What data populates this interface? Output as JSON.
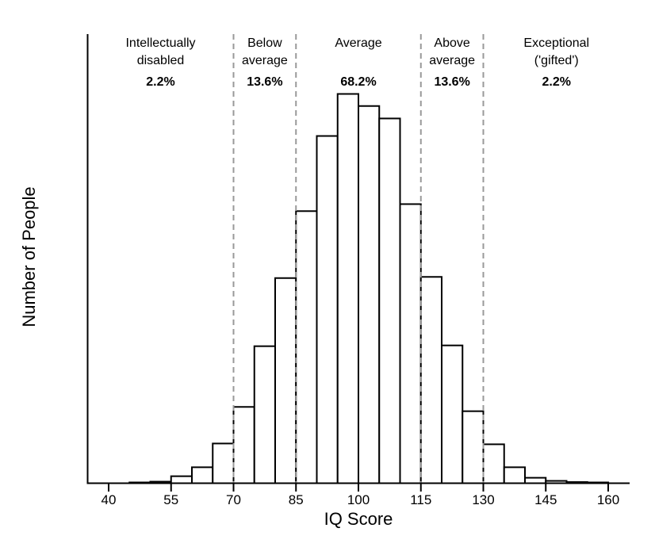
{
  "chart_data": {
    "type": "bar",
    "subtype": "histogram",
    "title": "",
    "xlabel": "IQ Score",
    "ylabel": "Number of People",
    "x_ticks": [
      40,
      55,
      70,
      85,
      100,
      115,
      130,
      145,
      160
    ],
    "xlim": [
      35,
      165
    ],
    "bin_width": 5,
    "y_axis_note": "y axis has no tick labels; bin heights are relative frequency with tallest bin = 1.0",
    "bins": [
      {
        "x0": 45,
        "x1": 50,
        "h": 0.002
      },
      {
        "x0": 50,
        "x1": 55,
        "h": 0.004
      },
      {
        "x0": 55,
        "x1": 60,
        "h": 0.018
      },
      {
        "x0": 60,
        "x1": 65,
        "h": 0.041
      },
      {
        "x0": 65,
        "x1": 70,
        "h": 0.102
      },
      {
        "x0": 70,
        "x1": 75,
        "h": 0.196
      },
      {
        "x0": 75,
        "x1": 80,
        "h": 0.352
      },
      {
        "x0": 80,
        "x1": 85,
        "h": 0.527
      },
      {
        "x0": 85,
        "x1": 90,
        "h": 0.699
      },
      {
        "x0": 90,
        "x1": 95,
        "h": 0.892
      },
      {
        "x0": 95,
        "x1": 100,
        "h": 1.0
      },
      {
        "x0": 100,
        "x1": 105,
        "h": 0.969
      },
      {
        "x0": 105,
        "x1": 110,
        "h": 0.937
      },
      {
        "x0": 110,
        "x1": 115,
        "h": 0.717
      },
      {
        "x0": 115,
        "x1": 120,
        "h": 0.53
      },
      {
        "x0": 120,
        "x1": 125,
        "h": 0.354
      },
      {
        "x0": 125,
        "x1": 130,
        "h": 0.185
      },
      {
        "x0": 130,
        "x1": 135,
        "h": 0.1
      },
      {
        "x0": 135,
        "x1": 140,
        "h": 0.041
      },
      {
        "x0": 140,
        "x1": 145,
        "h": 0.014
      },
      {
        "x0": 145,
        "x1": 150,
        "h": 0.006
      },
      {
        "x0": 150,
        "x1": 155,
        "h": 0.003
      },
      {
        "x0": 155,
        "x1": 160,
        "h": 0.002
      }
    ],
    "vlines": {
      "x": [
        70,
        85,
        115,
        130
      ],
      "style": "dashed",
      "color": "#999999"
    },
    "regions": [
      {
        "label": "Intellectually disabled",
        "label_lines": [
          "Intellectually",
          "disabled"
        ],
        "percent": "2.2%",
        "x_from": null,
        "x_to": 70
      },
      {
        "label": "Below average",
        "label_lines": [
          "Below",
          "average"
        ],
        "percent": "13.6%",
        "x_from": 70,
        "x_to": 85
      },
      {
        "label": "Average",
        "label_lines": [
          "Average"
        ],
        "percent": "68.2%",
        "x_from": 85,
        "x_to": 115
      },
      {
        "label": "Above average",
        "label_lines": [
          "Above",
          "average"
        ],
        "percent": "13.6%",
        "x_from": 115,
        "x_to": 130
      },
      {
        "label": "Exceptional ('gifted')",
        "label_lines": [
          "Exceptional",
          "('gifted')"
        ],
        "percent": "2.2%",
        "x_from": 130,
        "x_to": null
      }
    ],
    "colors": {
      "background": "#ffffff",
      "bar_fill": "#ffffff",
      "bar_stroke": "#000000",
      "axis": "#000000",
      "text": "#000000",
      "dashed_line": "#999999"
    },
    "legend": null,
    "grid": false
  }
}
